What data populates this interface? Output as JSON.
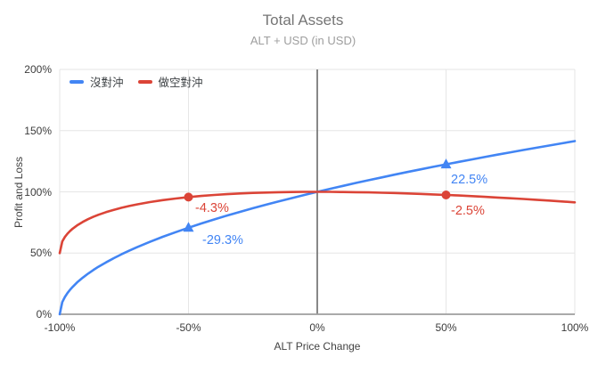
{
  "header": {
    "title": "Total Assets",
    "subtitle": "ALT + USD (in USD)"
  },
  "colors": {
    "series_blue": "#4285f4",
    "series_red": "#db4437",
    "gridline": "#e6e6e6",
    "zero_line_vertical": "#6b6b6b",
    "baseline": "#9e9e9e",
    "title_gray": "#757575",
    "subtitle_gray": "#9e9e9e"
  },
  "chart_data": {
    "type": "line",
    "title": "Total Assets",
    "subtitle": "ALT + USD (in USD)",
    "xlabel": "ALT Price Change",
    "ylabel": "Profit and Loss",
    "xlim": [
      -100,
      100
    ],
    "ylim": [
      0,
      200
    ],
    "x_ticks": [
      "-100%",
      "-50%",
      "0%",
      "50%",
      "100%"
    ],
    "y_ticks": [
      "0%",
      "50%",
      "100%",
      "150%",
      "200%"
    ],
    "grid": true,
    "legend_position": "top-left-inside",
    "x": [
      -100,
      -99,
      -98,
      -97,
      -96,
      -95,
      -93,
      -91,
      -89,
      -87,
      -85,
      -82,
      -79,
      -76,
      -73,
      -70,
      -65,
      -60,
      -55,
      -50,
      -45,
      -40,
      -35,
      -30,
      -25,
      -20,
      -15,
      -10,
      -5,
      0,
      5,
      10,
      15,
      20,
      25,
      30,
      35,
      40,
      45,
      50,
      55,
      60,
      65,
      70,
      75,
      80,
      85,
      90,
      95,
      100
    ],
    "series": [
      {
        "name": "沒對沖",
        "color": "#4285f4",
        "marker": "triangle-up",
        "values": [
          0,
          10,
          14.14,
          17.32,
          20,
          22.36,
          26.46,
          30,
          33.17,
          36.06,
          38.73,
          42.43,
          45.83,
          48.99,
          51.96,
          54.77,
          59.16,
          63.25,
          67.08,
          70.71,
          74.16,
          77.46,
          80.62,
          83.67,
          86.6,
          89.44,
          92.2,
          94.87,
          97.47,
          100,
          102.47,
          104.88,
          107.24,
          109.54,
          111.8,
          114.02,
          116.19,
          118.32,
          120.42,
          122.47,
          124.5,
          126.49,
          128.45,
          130.38,
          132.29,
          134.16,
          136.01,
          137.84,
          139.64,
          141.42
        ],
        "labeled_points": [
          {
            "x": -50,
            "y": 70.71,
            "label": "-29.3%"
          },
          {
            "x": 50,
            "y": 122.47,
            "label": "22.5%"
          }
        ]
      },
      {
        "name": "做空對沖",
        "color": "#db4437",
        "marker": "circle",
        "values": [
          50,
          59.5,
          63.14,
          65.82,
          68,
          69.86,
          72.96,
          75.5,
          77.67,
          79.56,
          81.23,
          83.43,
          85.33,
          86.99,
          88.46,
          89.77,
          91.66,
          93.25,
          94.58,
          95.71,
          96.66,
          97.46,
          98.12,
          98.67,
          99.1,
          99.44,
          99.7,
          99.87,
          99.97,
          100,
          99.97,
          99.88,
          99.74,
          99.54,
          99.3,
          99.02,
          98.69,
          98.32,
          97.92,
          97.47,
          97,
          96.49,
          95.95,
          95.38,
          94.79,
          94.16,
          93.51,
          92.84,
          92.14,
          91.42
        ],
        "labeled_points": [
          {
            "x": -50,
            "y": 95.71,
            "label": "-4.3%"
          },
          {
            "x": 50,
            "y": 97.47,
            "label": "-2.5%"
          }
        ]
      }
    ]
  }
}
